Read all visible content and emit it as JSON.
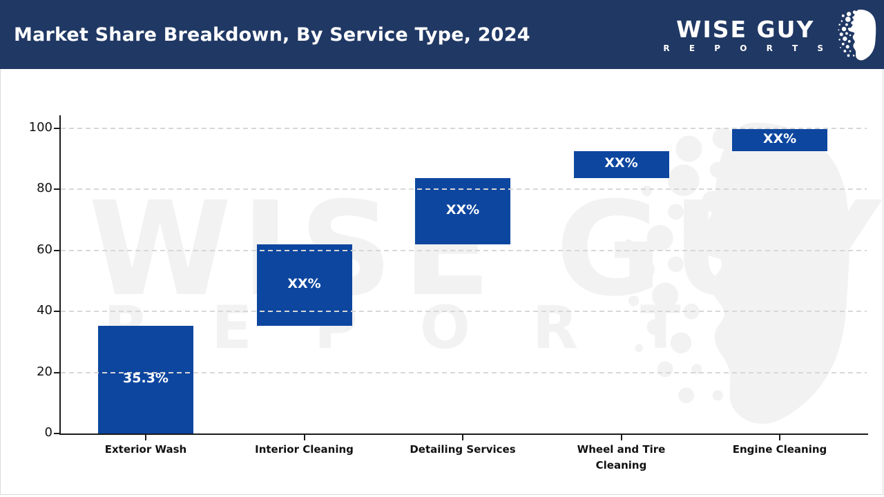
{
  "header": {
    "title": "Market Share Breakdown, By Service Type, 2024",
    "logo": {
      "line1": "WISE GUY",
      "line2": "R E P O R T S"
    }
  },
  "watermark": {
    "line1": "WISE GUY",
    "line2": "R E P O R T S"
  },
  "colors": {
    "header_bg": "#203864",
    "bar": "#0d469f",
    "grid": "#d7d7d7",
    "axis": "#1a1a1a",
    "bar_label": "#ffffff",
    "watermark": "#f2f2f2"
  },
  "chart_data": {
    "type": "bar",
    "subtype": "waterfall-stacked-percentage",
    "title": "Market Share Breakdown, By Service Type, 2024",
    "xlabel": "",
    "ylabel": "",
    "categories": [
      "Exterior Wash",
      "Interior Cleaning",
      "Detailing Services",
      "Wheel and Tire Cleaning",
      "Engine Cleaning"
    ],
    "segments": [
      {
        "category": "Exterior Wash",
        "start": 0,
        "end": 35.3,
        "label": "35.3%"
      },
      {
        "category": "Interior Cleaning",
        "start": 35.3,
        "end": 62.0,
        "label": "XX%"
      },
      {
        "category": "Detailing Services",
        "start": 62.0,
        "end": 83.8,
        "label": "XX%"
      },
      {
        "category": "Wheel and Tire Cleaning",
        "start": 83.8,
        "end": 92.6,
        "label": "XX%"
      },
      {
        "category": "Engine Cleaning",
        "start": 92.6,
        "end": 99.7,
        "label": "XX%"
      }
    ],
    "yticks": [
      0,
      20,
      40,
      60,
      80,
      100
    ],
    "ylim": [
      0,
      104
    ],
    "grid": "horizontal-dashed",
    "legend": "none"
  }
}
